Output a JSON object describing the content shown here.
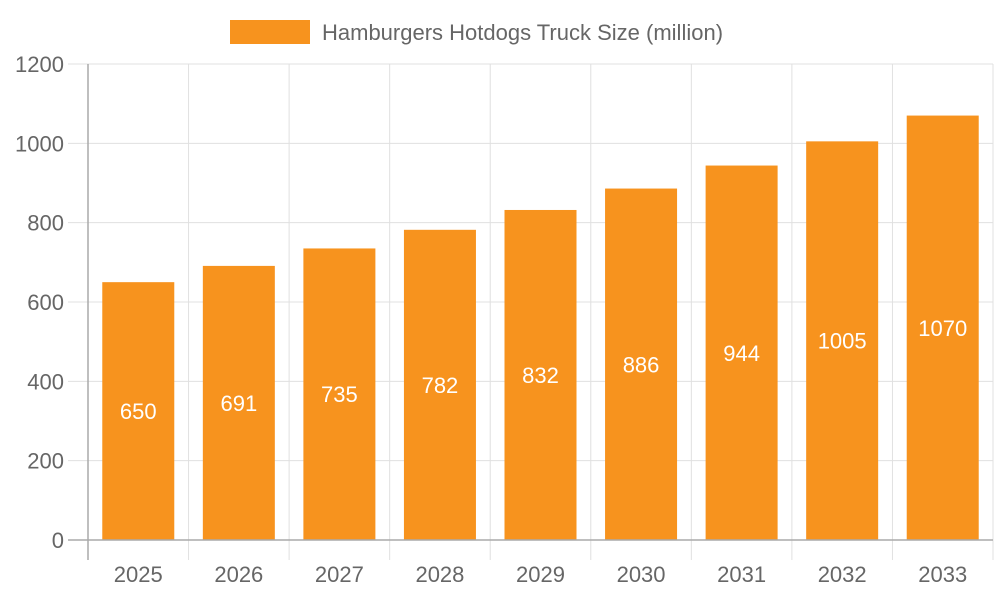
{
  "chart_data": {
    "type": "bar",
    "title": "",
    "xlabel": "",
    "ylabel": "",
    "categories": [
      "2025",
      "2026",
      "2027",
      "2028",
      "2029",
      "2030",
      "2031",
      "2032",
      "2033"
    ],
    "series": [
      {
        "name": "Hamburgers Hotdogs Truck Size (million)",
        "values": [
          650,
          691,
          735,
          782,
          832,
          886,
          944,
          1005,
          1070
        ],
        "color": "#F7931E"
      }
    ],
    "ylim": [
      0,
      1200
    ],
    "yticks": [
      0,
      200,
      400,
      600,
      800,
      1000,
      1200
    ],
    "grid": true,
    "legend": "top-center",
    "data_labels": true
  }
}
